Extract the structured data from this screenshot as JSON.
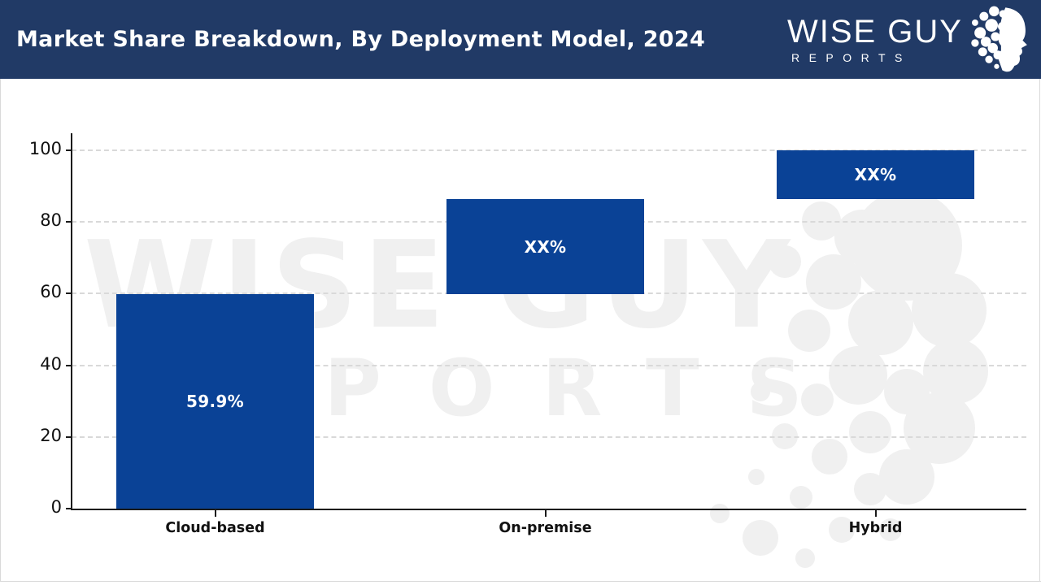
{
  "header": {
    "title": "Market Share Breakdown, By Deployment Model, 2024",
    "logo": {
      "name": "WISE GUY",
      "subtitle": "REPORTS"
    }
  },
  "watermark": {
    "line1": "WISE GUY",
    "line2": "REPORTS"
  },
  "chart_data": {
    "type": "bar",
    "subtype": "floating-segment / waterfall market share",
    "title": "Market Share Breakdown, By Deployment Model, 2024",
    "categories": [
      "Cloud-based",
      "On-premise",
      "Hybrid"
    ],
    "bars": [
      {
        "category": "Cloud-based",
        "start": 0,
        "end": 59.9,
        "value_label": "59.9%"
      },
      {
        "category": "On-premise",
        "start": 59.9,
        "end": 86.3,
        "value_label": "XX%"
      },
      {
        "category": "Hybrid",
        "start": 86.3,
        "end": 100,
        "value_label": "XX%"
      }
    ],
    "xlabel": "",
    "ylabel": "",
    "yticks": [
      0,
      20,
      40,
      60,
      80,
      100
    ],
    "ylim": [
      0,
      104.5
    ],
    "grid": {
      "horizontal": true,
      "style": "dashed",
      "color": "#d9d9d9"
    },
    "legend": null,
    "bar_color": "#0a4296",
    "bar_label_color": "#ffffff"
  },
  "colors": {
    "header_navy": "#213a66",
    "bar_blue": "#0a4296",
    "axis_black": "#1a1a1a",
    "gridline_gray": "#d9d9d9",
    "watermark_gray": "#f0f0f0"
  }
}
